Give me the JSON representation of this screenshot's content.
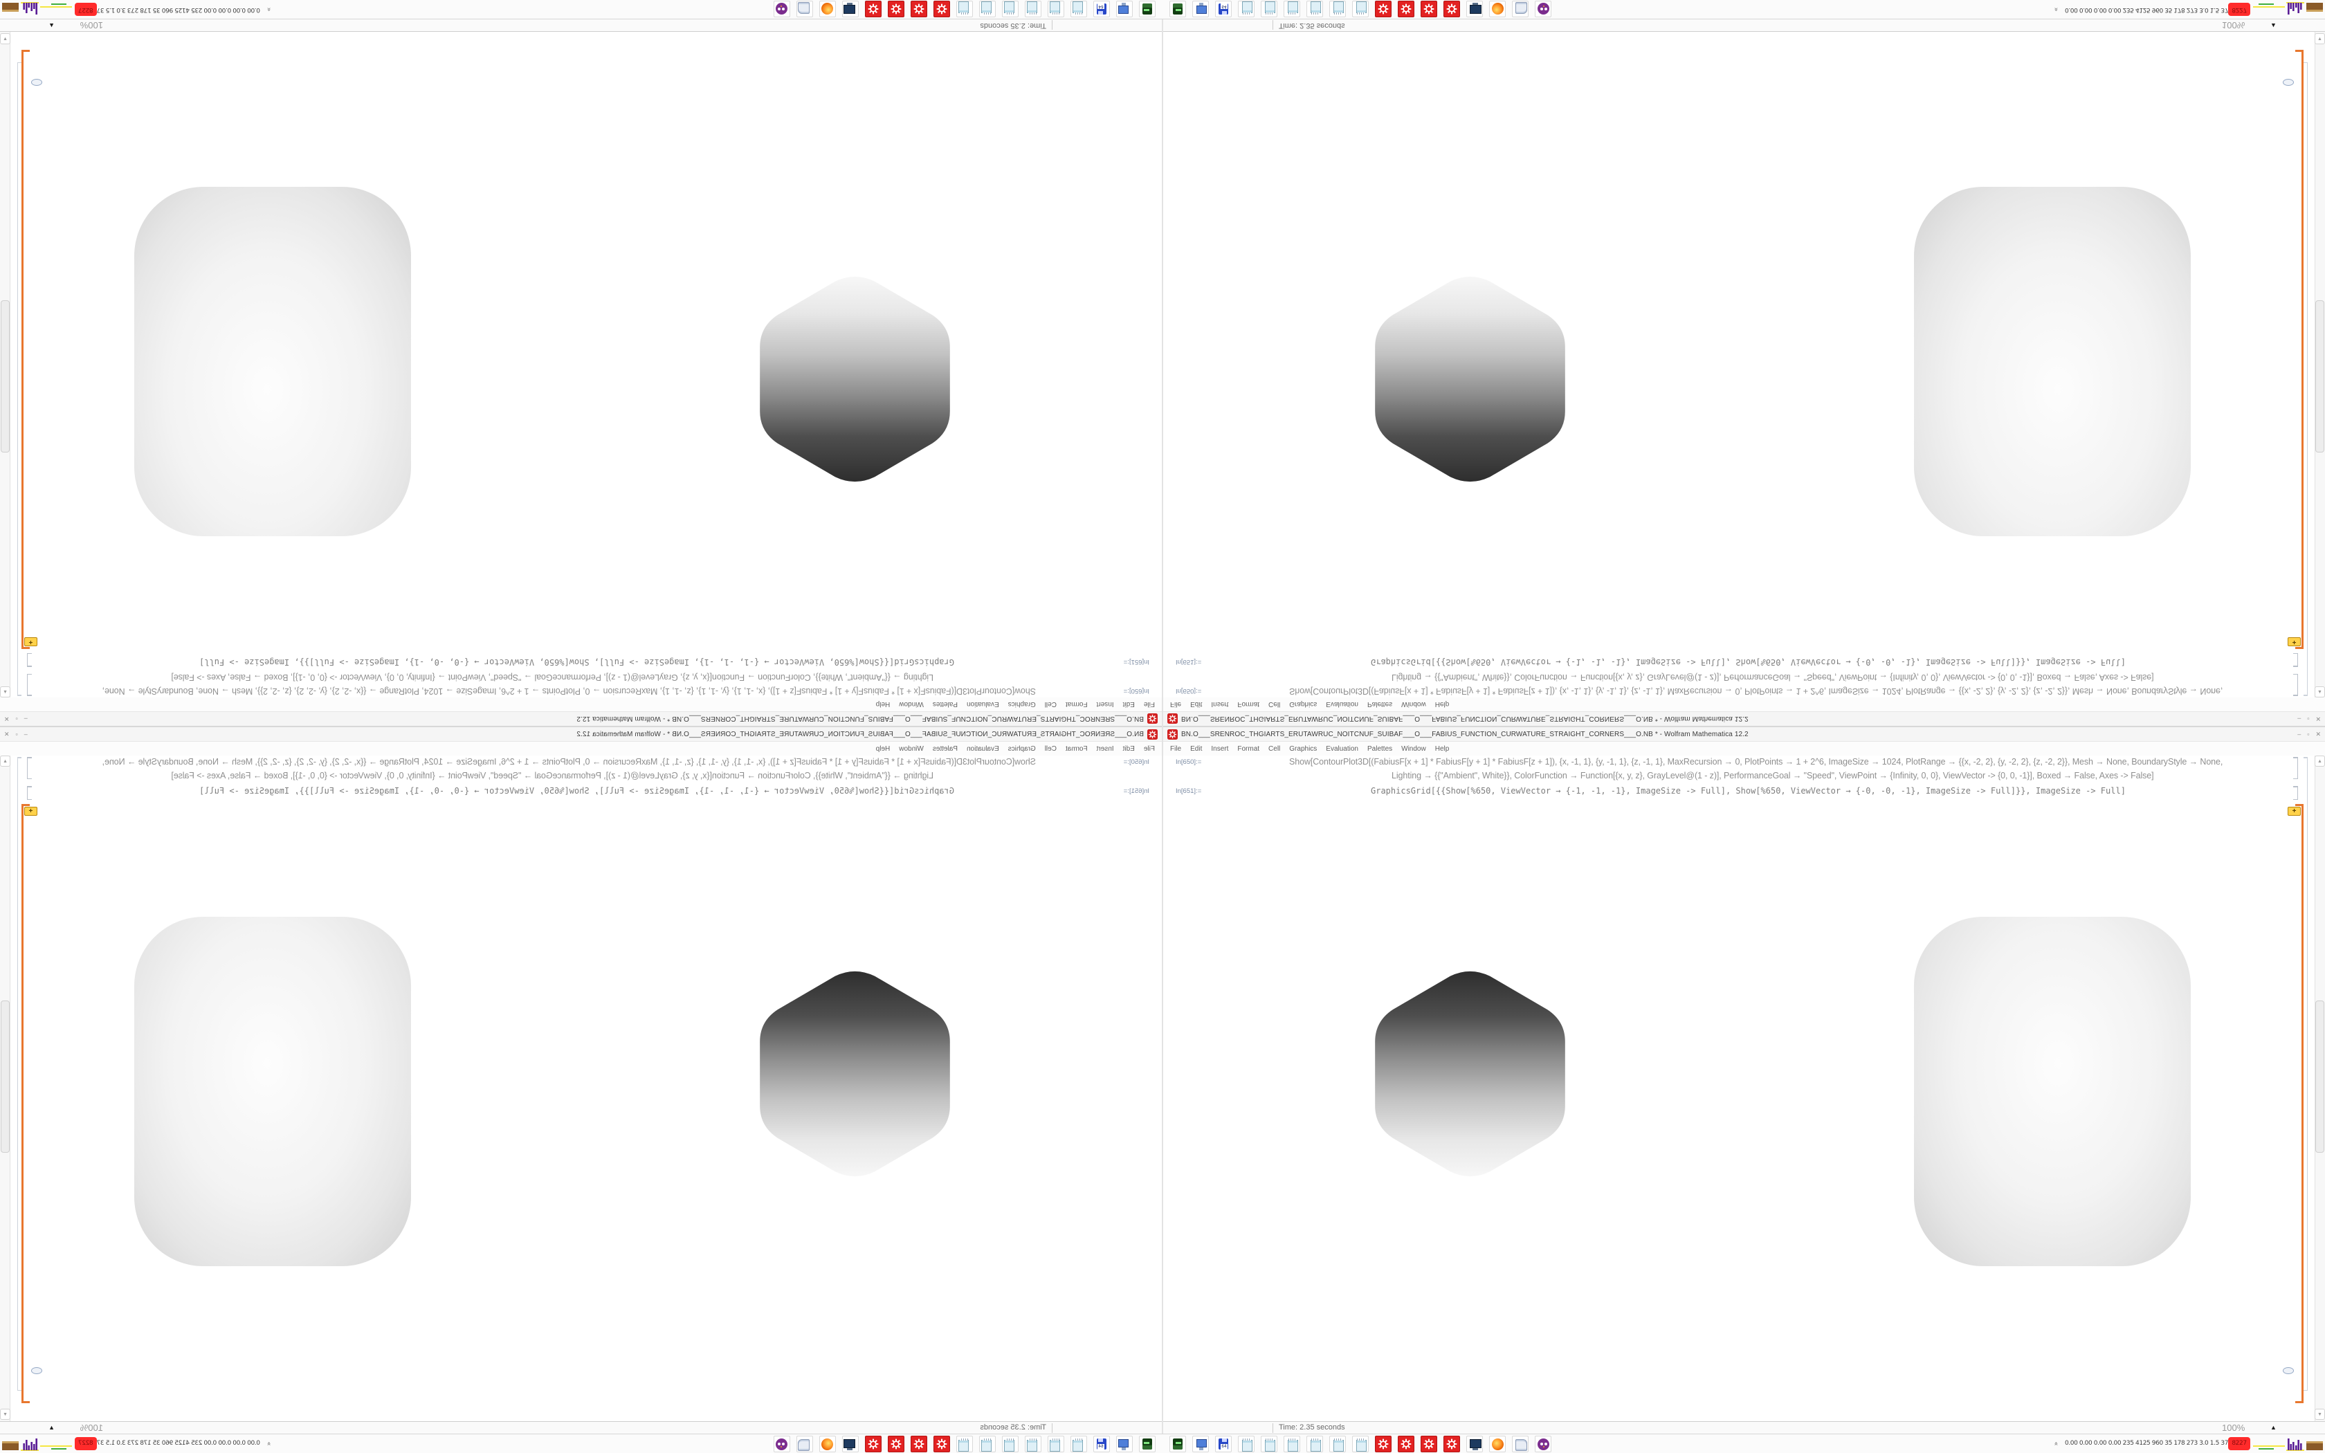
{
  "window": {
    "title": "BN.O___SRENROC_THGIARTS_ERUTAWRUC_NOITCNUF_SUIBAF___O___FABIUS_FUNCTION_CURWATURE_STRAIGHT_CORNERS___O.NB * - Wolfram Mathematica 12.2",
    "menu": [
      "File",
      "Edit",
      "Insert",
      "Format",
      "Cell",
      "Graphics",
      "Evaluation",
      "Palettes",
      "Window",
      "Help"
    ],
    "window_buttons": {
      "minimize": "–",
      "maximize": "▫",
      "close": "✕"
    },
    "status": {
      "time": "Time: 2.35 seconds",
      "magnification": "100%",
      "magnification_arrow": "▲"
    }
  },
  "cells": {
    "in650": {
      "label": "In[650]:=",
      "line1": "Show[ContourPlot3D[(FabiusF[x + 1] * FabiusF[y + 1] * FabiusF[z + 1]), {x, -1, 1}, {y, -1, 1}, {z, -1, 1}, MaxRecursion → 0, PlotPoints → 1 + 2^6, ImageSize → 1024, PlotRange → {{x, -2, 2}, {y, -2, 2}, {z, -2, 2}}, Mesh → None, BoundaryStyle → None,",
      "line2": "Lighting → {{\"Ambient\", White}}, ColorFunction → Function[{x, y, z}, GrayLevel@(1 - z)], PerformanceGoal → \"Speed\", ViewPoint → {Infinity, 0, 0}, ViewVector -> {0, 0, -1}], Boxed → False, Axes -> False]"
    },
    "in651": {
      "label": "In[651]:=",
      "code": "GraphicsGrid[{{Show[%650, ViewVector → {-1, -1, -1}, ImageSize -> Full], Show[%650, ViewVector → {-0, -0, -1}, ImageSize -> Full]}}, ImageSize -> Full]"
    },
    "plus_badge": "+"
  },
  "outputs": {
    "left_blob": "3D superellipsoid corner view, dark top fading to light bottom",
    "right_blob": "3D superellipsoid straight-on view, light rounded square"
  },
  "taskbar": {
    "icons": [
      "drive-green",
      "computer-user",
      "floppy-64",
      "notepad",
      "notepad",
      "notepad",
      "notepad",
      "notepad",
      "notepad",
      "red-gear",
      "red-gear",
      "red-gear",
      "red-gear",
      "monitor-tools",
      "firefox",
      "scroll-document",
      "owl-purple"
    ],
    "floppy_label": "64",
    "stats_values": "0.00 0.00 0.00 0.00 235 4125 960 35 178 273 3.0 1.5 37 33 4072",
    "stats_highlight": "8227"
  },
  "colors": {
    "accent_orange": "#e8772e",
    "badge_red": "#ff2b2b",
    "app_icon_red": "#d21f1f",
    "stats_purple": "#5a1d96",
    "stats_yellow": "#f5e642",
    "stats_green": "#3fae3f",
    "stats_brown": "#8a5a28",
    "label_blue": "#7b8ba3"
  }
}
